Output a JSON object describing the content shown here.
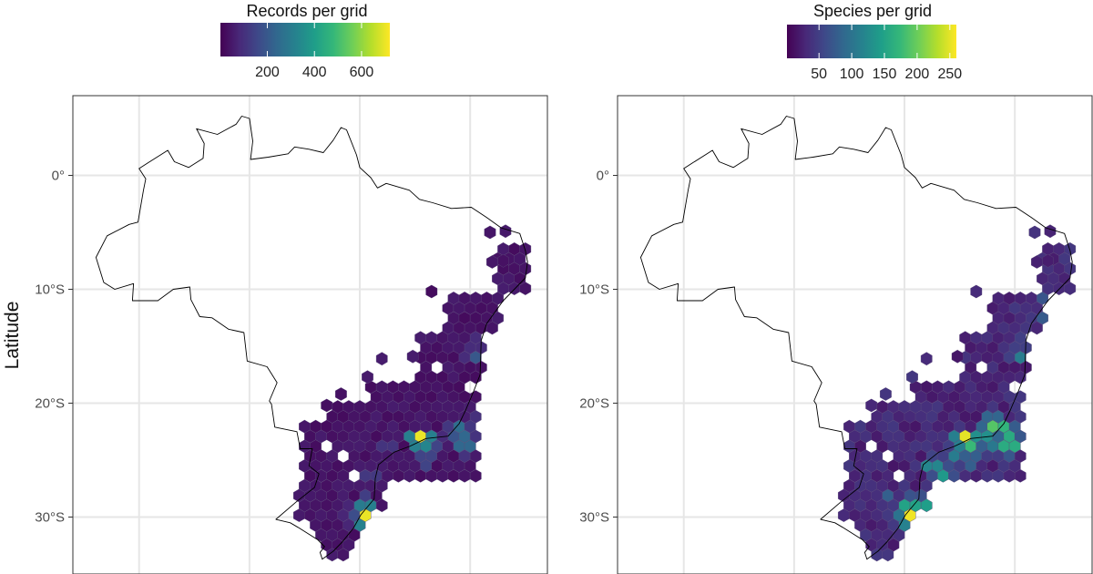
{
  "figure": {
    "y_axis_title": "Latitude",
    "y_ticks": [
      {
        "value": 0,
        "label": "0°"
      },
      {
        "value": -10,
        "label": "10°S"
      },
      {
        "value": -20,
        "label": "20°S"
      },
      {
        "value": -30,
        "label": "30°S"
      }
    ],
    "lon_gridlines": [
      -70,
      -60,
      -50,
      -40
    ],
    "lat_range": [
      -35,
      7
    ],
    "lon_range": [
      -76,
      -33
    ]
  },
  "panels": [
    {
      "id": "records",
      "legend": {
        "title": "Records per grid",
        "range": [
          1,
          720
        ],
        "ticks": [
          {
            "value": 200,
            "label": "200"
          },
          {
            "value": 400,
            "label": "400"
          },
          {
            "value": 600,
            "label": "600"
          }
        ]
      },
      "hotspots": [
        {
          "lon": -44.5,
          "lat": -23.3,
          "value": 700
        },
        {
          "lon": -49.0,
          "lat": -30.0,
          "value": 700
        },
        {
          "lon": -44.0,
          "lat": -24.3,
          "value": 330
        },
        {
          "lon": -49.5,
          "lat": -29.0,
          "value": 300
        },
        {
          "lon": -41.0,
          "lat": -22.5,
          "value": 260
        },
        {
          "lon": -40.5,
          "lat": -23.5,
          "value": 240
        },
        {
          "lon": -39.5,
          "lat": -15.5,
          "value": 200
        },
        {
          "lon": -41.5,
          "lat": -22.5,
          "value": 190
        },
        {
          "lon": -50.5,
          "lat": -30.0,
          "value": 170
        },
        {
          "lon": -49.0,
          "lat": -26.5,
          "value": 120
        },
        {
          "lon": -47.5,
          "lat": -24.0,
          "value": 110
        },
        {
          "lon": -39.5,
          "lat": -21.0,
          "value": 100
        }
      ],
      "background_value": 40
    },
    {
      "id": "species",
      "legend": {
        "title": "Species per grid",
        "range": [
          1,
          260
        ],
        "ticks": [
          {
            "value": 50,
            "label": "50"
          },
          {
            "value": 100,
            "label": "100"
          },
          {
            "value": 150,
            "label": "150"
          },
          {
            "value": 200,
            "label": "200"
          },
          {
            "value": 250,
            "label": "250"
          }
        ]
      },
      "hotspots": [
        {
          "lon": -44.5,
          "lat": -23.3,
          "value": 250
        },
        {
          "lon": -49.0,
          "lat": -30.0,
          "value": 255
        },
        {
          "lon": -42.0,
          "lat": -22.0,
          "value": 190
        },
        {
          "lon": -44.0,
          "lat": -24.3,
          "value": 175
        },
        {
          "lon": -41.0,
          "lat": -22.5,
          "value": 170
        },
        {
          "lon": -40.5,
          "lat": -23.5,
          "value": 160
        },
        {
          "lon": -49.5,
          "lat": -29.0,
          "value": 150
        },
        {
          "lon": -48.5,
          "lat": -29.0,
          "value": 145
        },
        {
          "lon": -46.5,
          "lat": -26.5,
          "value": 140
        },
        {
          "lon": -47.5,
          "lat": -25.5,
          "value": 120
        },
        {
          "lon": -43.0,
          "lat": -23.0,
          "value": 130
        },
        {
          "lon": -39.5,
          "lat": -15.5,
          "value": 110
        },
        {
          "lon": -50.5,
          "lat": -30.0,
          "value": 100
        },
        {
          "lon": -39.0,
          "lat": -20.5,
          "value": 95
        },
        {
          "lon": -42.0,
          "lat": -24.0,
          "value": 105
        },
        {
          "lon": -37.5,
          "lat": -12.0,
          "value": 75
        },
        {
          "lon": -37.0,
          "lat": -11.0,
          "value": 70
        },
        {
          "lon": -48.0,
          "lat": -31.0,
          "value": 90
        },
        {
          "lon": -51.5,
          "lat": -28.5,
          "value": 80
        },
        {
          "lon": -45.5,
          "lat": -24.5,
          "value": 110
        }
      ],
      "background_value": 30
    }
  ],
  "colors": {
    "viridis": [
      "#440154",
      "#482878",
      "#3e4989",
      "#31688e",
      "#26828e",
      "#1f9e89",
      "#35b779",
      "#6ece58",
      "#b5de2b",
      "#fde725"
    ],
    "outline": "#000000",
    "grid": "#e6e6e6",
    "panel_border": "#333333"
  }
}
